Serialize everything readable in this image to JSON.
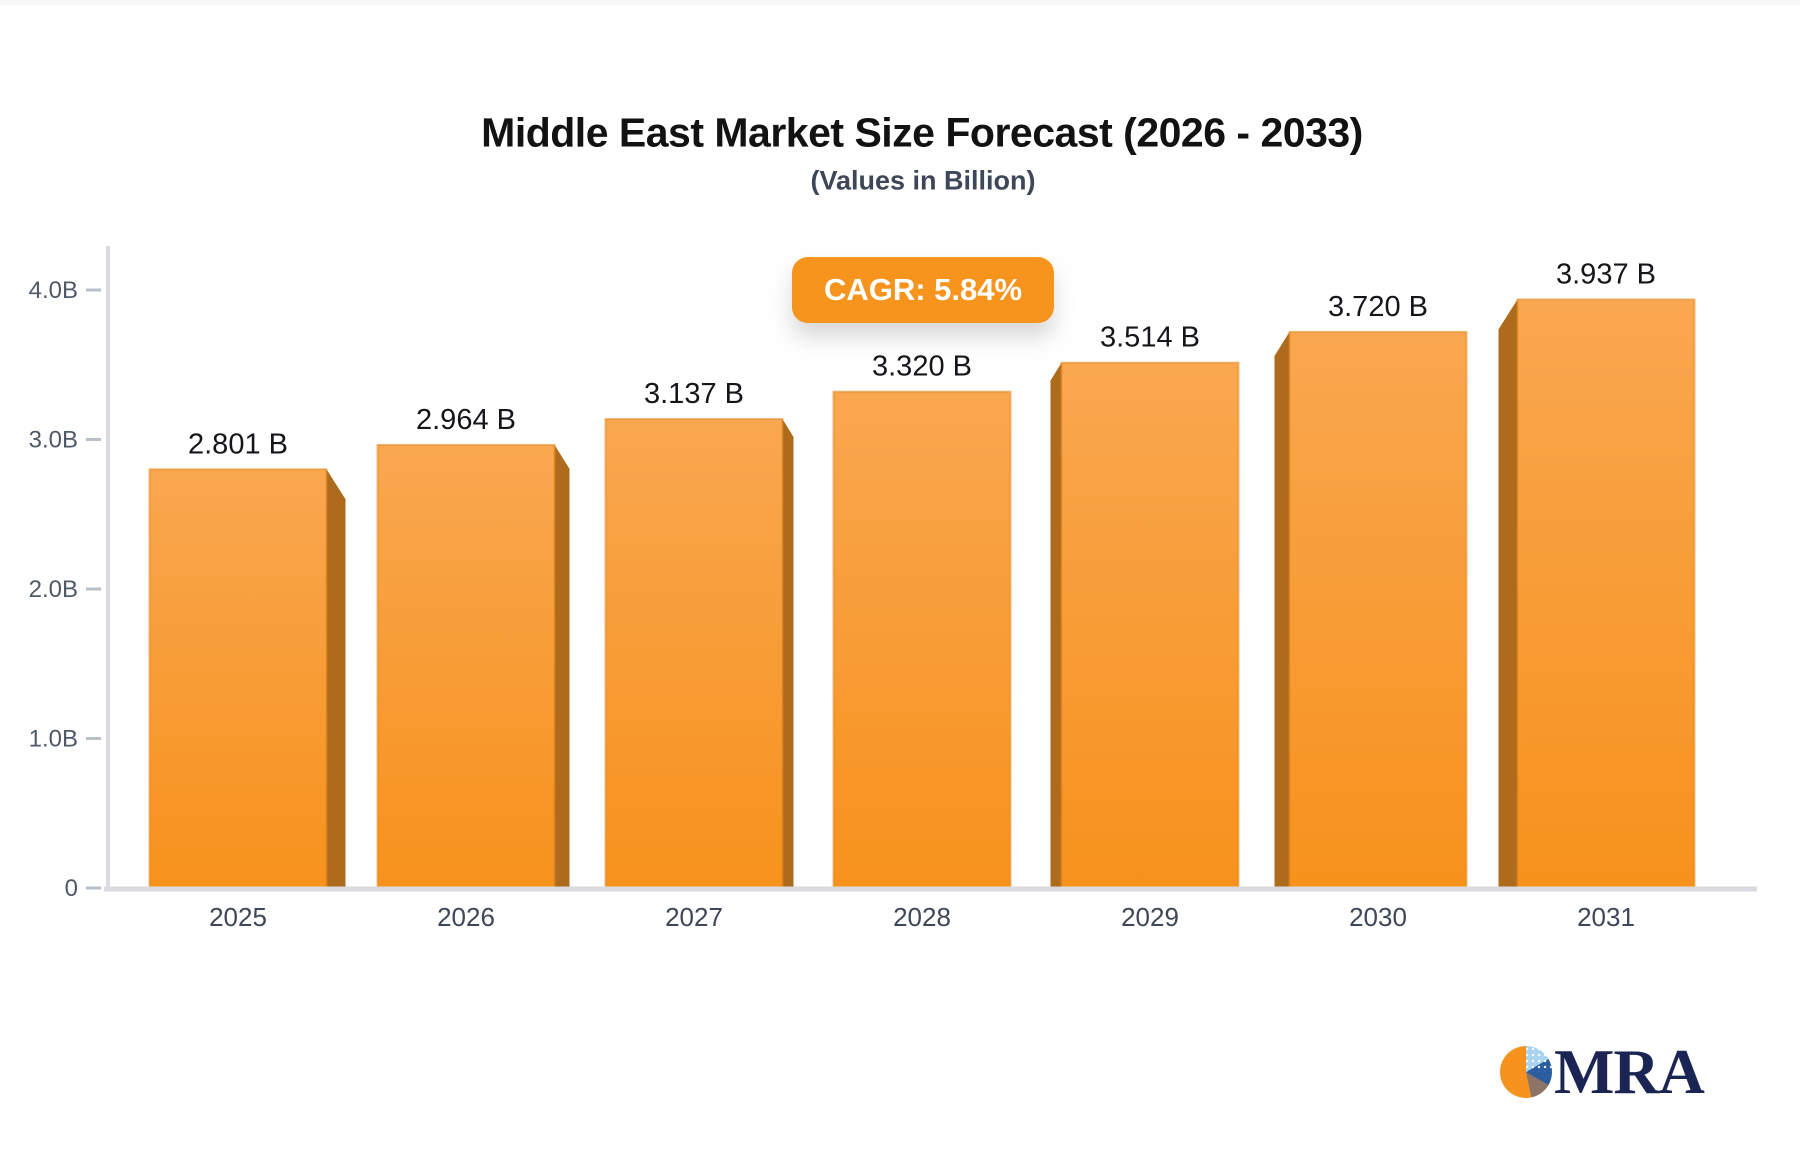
{
  "header": {
    "title": "Middle East Market Size Forecast (2026 - 2033)",
    "subtitle": "(Values in Billion)"
  },
  "badge": {
    "label": "CAGR: 5.84%",
    "bg": "#f7941e",
    "text_color": "#ffffff"
  },
  "chart_data": {
    "type": "bar",
    "title": "Middle East Market Size Forecast (2026 - 2033)",
    "subtitle": "(Values in Billion)",
    "annotation": "CAGR: 5.84%",
    "categories": [
      "2025",
      "2026",
      "2027",
      "2028",
      "2029",
      "2030",
      "2031"
    ],
    "values": [
      2.801,
      2.964,
      3.137,
      3.32,
      3.514,
      3.72,
      3.937
    ],
    "value_labels": [
      "2.801 B",
      "2.964 B",
      "3.137 B",
      "3.320 B",
      "3.514 B",
      "3.720 B",
      "3.937 B"
    ],
    "yticks": [
      {
        "label": "4.0B",
        "value": 4.0
      },
      {
        "label": "3.0B",
        "value": 3.0
      },
      {
        "label": "2.0B",
        "value": 2.0
      },
      {
        "label": "1.0B",
        "value": 1.0
      },
      {
        "label": "0",
        "value": 0
      }
    ],
    "ylim": [
      0,
      4.0
    ],
    "grid": "off",
    "legend": "none",
    "colors": {
      "bar_top": "#f9a750",
      "bar_bottom": "#f7921c",
      "bar_side": "#ad6b1b",
      "bar_stroke": "#e2861f",
      "axis": "#d9dbde",
      "tick": "#b9bfc7",
      "tick_label": "#4e5a68",
      "category_label": "#3d4757",
      "value_label": "#15161a"
    }
  },
  "logo": {
    "text": "MRA",
    "color": "#1b2553",
    "pie_colors": {
      "orange": "#f6921d",
      "light_blue": "#a9d3ee",
      "dark_blue": "#2b5d9f",
      "brown": "#8d7468"
    }
  }
}
